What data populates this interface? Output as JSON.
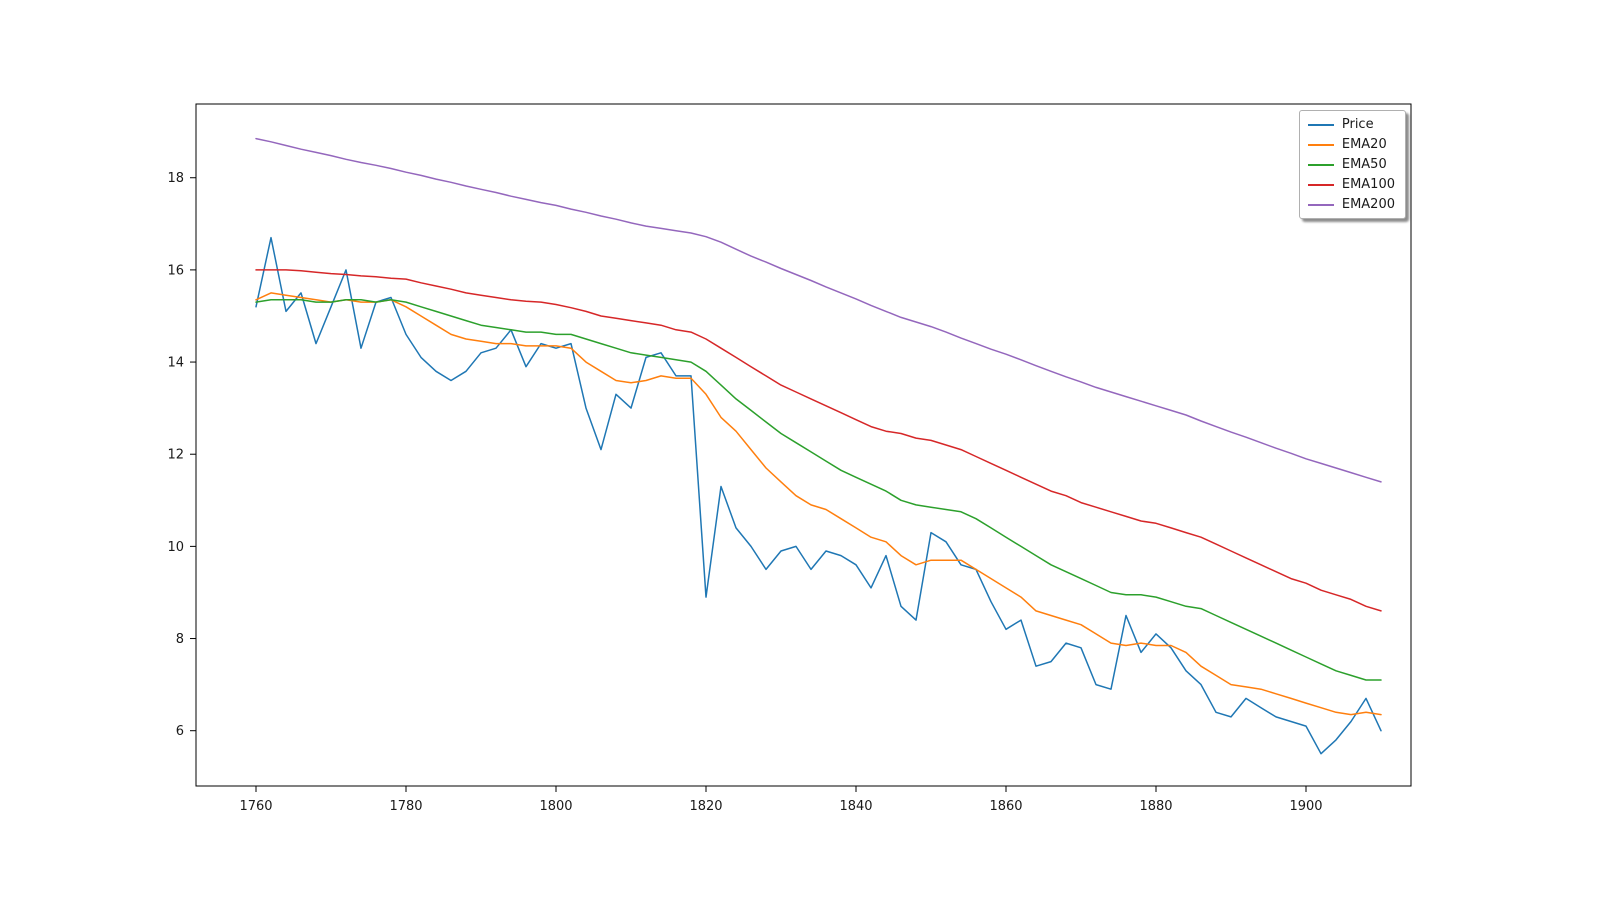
{
  "figure": {
    "background_color": "#ffffff",
    "frame_color": "#000000",
    "text_color": "#1a1a1a"
  },
  "chart_data": {
    "type": "line",
    "title": "",
    "xlabel": "",
    "ylabel": "",
    "grid": false,
    "xlim": [
      1752,
      1914
    ],
    "ylim": [
      4.8,
      19.6
    ],
    "x_ticks": [
      1760,
      1780,
      1800,
      1820,
      1840,
      1860,
      1880,
      1900
    ],
    "y_ticks": [
      6,
      8,
      10,
      12,
      14,
      16,
      18
    ],
    "legend": {
      "position": "upper right",
      "entries": [
        "Price",
        "EMA20",
        "EMA50",
        "EMA100",
        "EMA200"
      ]
    },
    "x": [
      1760,
      1762,
      1764,
      1766,
      1768,
      1770,
      1772,
      1774,
      1776,
      1778,
      1780,
      1782,
      1784,
      1786,
      1788,
      1790,
      1792,
      1794,
      1796,
      1798,
      1800,
      1802,
      1804,
      1806,
      1808,
      1810,
      1812,
      1814,
      1816,
      1818,
      1820,
      1822,
      1824,
      1826,
      1828,
      1830,
      1832,
      1834,
      1836,
      1838,
      1840,
      1842,
      1844,
      1846,
      1848,
      1850,
      1852,
      1854,
      1856,
      1858,
      1860,
      1862,
      1864,
      1866,
      1868,
      1870,
      1872,
      1874,
      1876,
      1878,
      1880,
      1882,
      1884,
      1886,
      1888,
      1890,
      1892,
      1894,
      1896,
      1898,
      1900,
      1902,
      1904,
      1906,
      1908,
      1910
    ],
    "series": [
      {
        "name": "Price",
        "color": "#1f77b4",
        "values": [
          15.2,
          16.7,
          15.1,
          15.5,
          14.4,
          15.2,
          16.0,
          14.3,
          15.3,
          15.4,
          14.6,
          14.1,
          13.8,
          13.6,
          13.8,
          14.2,
          14.3,
          14.7,
          13.9,
          14.4,
          14.3,
          14.4,
          13.0,
          12.1,
          13.3,
          13.0,
          14.1,
          14.2,
          13.7,
          13.7,
          8.9,
          11.3,
          10.4,
          10.0,
          9.5,
          9.9,
          10.0,
          9.5,
          9.9,
          9.8,
          9.6,
          9.1,
          9.8,
          8.7,
          8.4,
          10.3,
          10.1,
          9.6,
          9.5,
          8.8,
          8.2,
          8.4,
          7.4,
          7.5,
          7.9,
          7.8,
          7.0,
          6.9,
          8.5,
          7.7,
          8.1,
          7.8,
          7.3,
          7.0,
          6.4,
          6.3,
          6.7,
          6.5,
          6.3,
          6.2,
          6.1,
          5.5,
          5.8,
          6.2,
          6.7,
          6.0
        ]
      },
      {
        "name": "EMA20",
        "color": "#ff7f0e",
        "values": [
          15.35,
          15.5,
          15.45,
          15.4,
          15.35,
          15.3,
          15.35,
          15.3,
          15.3,
          15.35,
          15.2,
          15.0,
          14.8,
          14.6,
          14.5,
          14.45,
          14.4,
          14.4,
          14.35,
          14.35,
          14.35,
          14.3,
          14.0,
          13.8,
          13.6,
          13.55,
          13.6,
          13.7,
          13.65,
          13.65,
          13.3,
          12.8,
          12.5,
          12.1,
          11.7,
          11.4,
          11.1,
          10.9,
          10.8,
          10.6,
          10.4,
          10.2,
          10.1,
          9.8,
          9.6,
          9.7,
          9.7,
          9.7,
          9.5,
          9.3,
          9.1,
          8.9,
          8.6,
          8.5,
          8.4,
          8.3,
          8.1,
          7.9,
          7.85,
          7.9,
          7.85,
          7.85,
          7.7,
          7.4,
          7.2,
          7.0,
          6.95,
          6.9,
          6.8,
          6.7,
          6.6,
          6.5,
          6.4,
          6.35,
          6.4,
          6.35
        ]
      },
      {
        "name": "EMA50",
        "color": "#2ca02c",
        "values": [
          15.3,
          15.35,
          15.35,
          15.35,
          15.3,
          15.3,
          15.35,
          15.35,
          15.3,
          15.35,
          15.3,
          15.2,
          15.1,
          15.0,
          14.9,
          14.8,
          14.75,
          14.7,
          14.65,
          14.65,
          14.6,
          14.6,
          14.5,
          14.4,
          14.3,
          14.2,
          14.15,
          14.1,
          14.05,
          14.0,
          13.8,
          13.5,
          13.2,
          12.95,
          12.7,
          12.45,
          12.25,
          12.05,
          11.85,
          11.65,
          11.5,
          11.35,
          11.2,
          11.0,
          10.9,
          10.85,
          10.8,
          10.75,
          10.6,
          10.4,
          10.2,
          10.0,
          9.8,
          9.6,
          9.45,
          9.3,
          9.15,
          9.0,
          8.95,
          8.95,
          8.9,
          8.8,
          8.7,
          8.65,
          8.5,
          8.35,
          8.2,
          8.05,
          7.9,
          7.75,
          7.6,
          7.45,
          7.3,
          7.2,
          7.1,
          7.1
        ]
      },
      {
        "name": "EMA100",
        "color": "#d62728",
        "values": [
          16.0,
          16.0,
          16.0,
          15.98,
          15.95,
          15.92,
          15.9,
          15.87,
          15.85,
          15.82,
          15.8,
          15.72,
          15.65,
          15.58,
          15.5,
          15.45,
          15.4,
          15.35,
          15.32,
          15.3,
          15.25,
          15.18,
          15.1,
          15.0,
          14.95,
          14.9,
          14.85,
          14.8,
          14.7,
          14.65,
          14.5,
          14.3,
          14.1,
          13.9,
          13.7,
          13.5,
          13.35,
          13.2,
          13.05,
          12.9,
          12.75,
          12.6,
          12.5,
          12.45,
          12.35,
          12.3,
          12.2,
          12.1,
          11.95,
          11.8,
          11.65,
          11.5,
          11.35,
          11.2,
          11.1,
          10.95,
          10.85,
          10.75,
          10.65,
          10.55,
          10.5,
          10.4,
          10.3,
          10.2,
          10.05,
          9.9,
          9.75,
          9.6,
          9.45,
          9.3,
          9.2,
          9.05,
          8.95,
          8.85,
          8.7,
          8.6
        ]
      },
      {
        "name": "EMA200",
        "color": "#9467bd",
        "values": [
          18.85,
          18.78,
          18.7,
          18.62,
          18.55,
          18.48,
          18.4,
          18.33,
          18.27,
          18.2,
          18.12,
          18.05,
          17.97,
          17.9,
          17.82,
          17.75,
          17.68,
          17.6,
          17.53,
          17.46,
          17.4,
          17.32,
          17.25,
          17.17,
          17.1,
          17.02,
          16.95,
          16.9,
          16.85,
          16.8,
          16.72,
          16.6,
          16.45,
          16.3,
          16.17,
          16.03,
          15.9,
          15.77,
          15.63,
          15.5,
          15.37,
          15.23,
          15.1,
          14.97,
          14.87,
          14.77,
          14.65,
          14.52,
          14.4,
          14.28,
          14.17,
          14.05,
          13.92,
          13.8,
          13.68,
          13.57,
          13.45,
          13.35,
          13.25,
          13.15,
          13.05,
          12.95,
          12.85,
          12.72,
          12.6,
          12.48,
          12.37,
          12.25,
          12.13,
          12.02,
          11.9,
          11.8,
          11.7,
          11.6,
          11.5,
          11.4
        ]
      }
    ]
  }
}
